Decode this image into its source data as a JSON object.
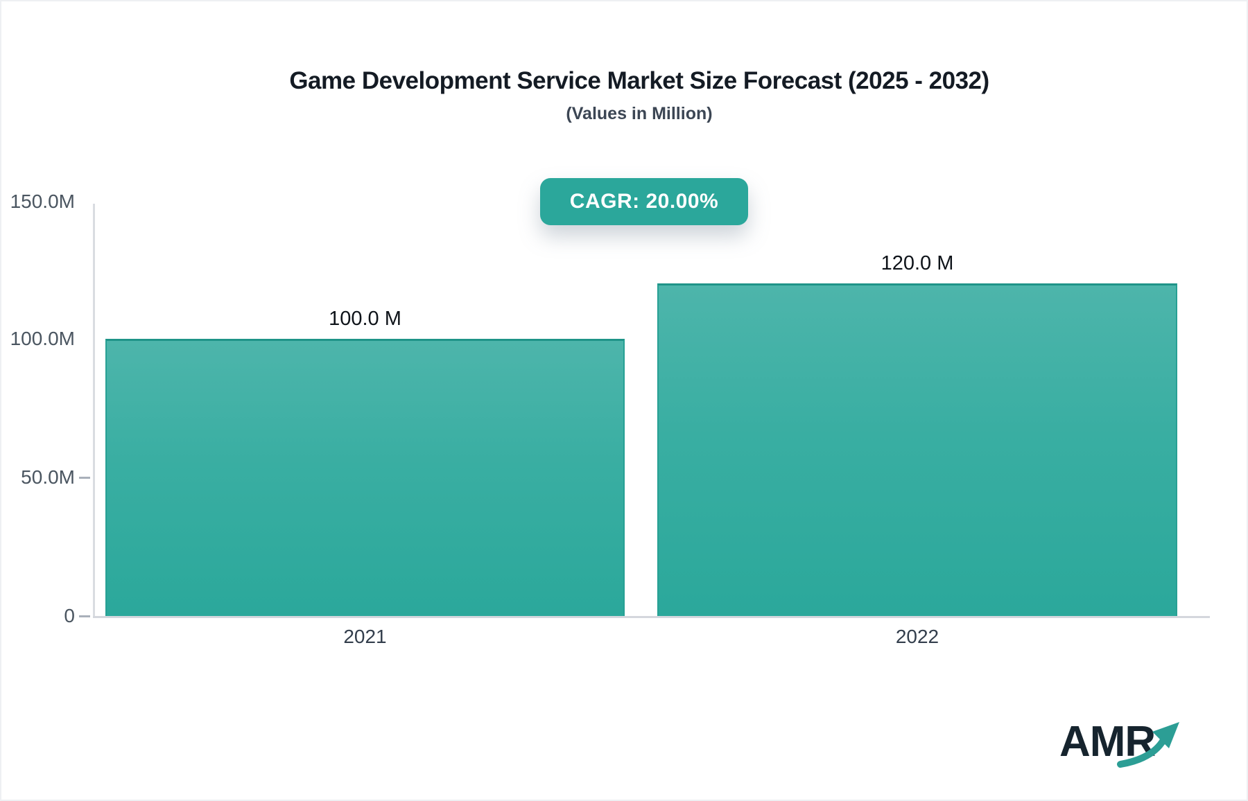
{
  "page": {
    "cagr_badge": "CAGR: 20.00%",
    "logo_text": "AMR"
  },
  "header": {
    "title": "Game Development Service Market Size Forecast (2025 - 2032)",
    "subtitle": "(Values in Million)"
  },
  "chart_data": {
    "type": "bar",
    "title": "Game Development Service Market Size Forecast (2025 - 2032)",
    "subtitle": "(Values in Million)",
    "categories": [
      "2021",
      "2022"
    ],
    "values": [
      100.0,
      120.0
    ],
    "value_labels": [
      "100.0 M",
      "120.0 M"
    ],
    "ylim": [
      0,
      150
    ],
    "y_ticks": [
      {
        "label": "150.0M",
        "value": 150
      },
      {
        "label": "100.0M",
        "value": 100
      },
      {
        "label": "50.0M",
        "value": 50
      },
      {
        "label": "0",
        "value": 0
      }
    ],
    "grid": false,
    "legend": false,
    "annotations": [
      "CAGR: 20.00%"
    ],
    "colors": {
      "bar_top": "#4db5ab",
      "bar_bottom": "#2ba89b",
      "bar_border": "#1f9488",
      "accent": "#2BA79B",
      "axis_line": "#d9dce1",
      "text_dark": "#141b24",
      "text_axis": "#4a5560"
    }
  }
}
